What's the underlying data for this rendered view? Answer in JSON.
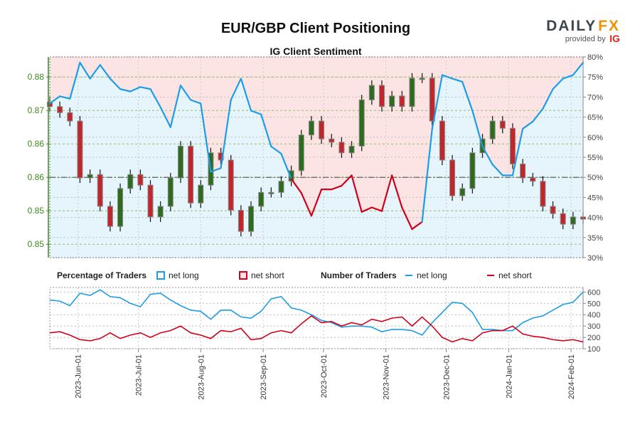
{
  "header": {
    "title": "EUR/GBP Client Positioning",
    "subtitle": "IG Client Sentiment",
    "logo": {
      "brand_dark": "DAILY",
      "brand_accent": "FX",
      "provided_by": "provided by",
      "partner": "IG"
    }
  },
  "legend": {
    "pct_title": "Percentage of Traders",
    "pct_long": "net long",
    "pct_short": "net short",
    "num_title": "Number of Traders",
    "num_long": "net long",
    "num_short": "net short"
  },
  "colors": {
    "long": "#1e9de6",
    "short": "#d0021b",
    "up_candle": "#2e6b1e",
    "down_candle": "#c0272d",
    "long_zone": "#e6f4fb",
    "short_zone": "#fce4e4",
    "price_axis": "#3a8a1a"
  },
  "chart_data": [
    {
      "type": "candlestick+line",
      "title": "IG Client Sentiment",
      "xlim": [
        "2023-05-18",
        "2024-02-07"
      ],
      "price_axis": {
        "side": "left",
        "ylim": [
          0.8436,
          0.8796
        ],
        "ticks": [
          0.876,
          0.87,
          0.864,
          0.858,
          0.852,
          0.846
        ],
        "tick_labels": [
          "0.88",
          "0.87",
          "0.86",
          "0.86",
          "0.85",
          "0.85"
        ]
      },
      "pct_axis": {
        "side": "right",
        "ylim": [
          30,
          80
        ],
        "ticks": [
          80,
          75,
          70,
          65,
          60,
          55,
          50,
          45,
          40,
          35,
          30
        ],
        "tick_labels": [
          "80%",
          "75%",
          "70%",
          "65%",
          "60%",
          "55%",
          "50%",
          "45%",
          "40%",
          "35%",
          "30%"
        ],
        "reference_line": 50
      },
      "grid": true,
      "dates": [
        "2023-05-18",
        "2023-05-23",
        "2023-05-28",
        "2023-06-02",
        "2023-06-07",
        "2023-06-12",
        "2023-06-17",
        "2023-06-22",
        "2023-06-27",
        "2023-07-02",
        "2023-07-07",
        "2023-07-12",
        "2023-07-17",
        "2023-07-22",
        "2023-07-27",
        "2023-08-01",
        "2023-08-06",
        "2023-08-11",
        "2023-08-16",
        "2023-08-21",
        "2023-08-26",
        "2023-08-31",
        "2023-09-05",
        "2023-09-10",
        "2023-09-15",
        "2023-09-20",
        "2023-09-25",
        "2023-09-30",
        "2023-10-05",
        "2023-10-10",
        "2023-10-15",
        "2023-10-20",
        "2023-10-25",
        "2023-10-30",
        "2023-11-04",
        "2023-11-09",
        "2023-11-14",
        "2023-11-19",
        "2023-11-24",
        "2023-11-29",
        "2023-12-04",
        "2023-12-09",
        "2023-12-14",
        "2023-12-19",
        "2023-12-24",
        "2023-12-29",
        "2024-01-03",
        "2024-01-08",
        "2024-01-13",
        "2024-01-18",
        "2024-01-23",
        "2024-01-28",
        "2024-02-02",
        "2024-02-07"
      ],
      "price_close": [
        0.8707,
        0.8696,
        0.8681,
        0.8579,
        0.8585,
        0.8528,
        0.8492,
        0.856,
        0.8585,
        0.8566,
        0.8509,
        0.8528,
        0.8579,
        0.8636,
        0.8534,
        0.8566,
        0.8624,
        0.8611,
        0.8521,
        0.8483,
        0.8528,
        0.8553,
        0.8553,
        0.8573,
        0.8592,
        0.8656,
        0.8681,
        0.8649,
        0.8643,
        0.8624,
        0.8636,
        0.8719,
        0.8745,
        0.8707,
        0.8726,
        0.8707,
        0.8758,
        0.8758,
        0.8681,
        0.8611,
        0.8547,
        0.856,
        0.8624,
        0.8649,
        0.8681,
        0.8668,
        0.8604,
        0.8579,
        0.8573,
        0.8528,
        0.8515,
        0.8496,
        0.8509,
        0.8505
      ],
      "net_long_pct": [
        68.4,
        70.2,
        69.6,
        78.6,
        74.6,
        78.0,
        74.6,
        72.0,
        71.4,
        72.5,
        72.0,
        67.5,
        62.5,
        72.9,
        69.3,
        68.4,
        51.4,
        52.3,
        69.3,
        74.6,
        66.6,
        65.7,
        57.7,
        55.9,
        49.6,
        46.1,
        40.4,
        47.0,
        47.0,
        47.9,
        50.5,
        41.4,
        42.5,
        41.6,
        50.5,
        42.5,
        37.1,
        38.9,
        62.1,
        75.5,
        74.6,
        73.8,
        66.6,
        57.7,
        53.2,
        50.5,
        50.5,
        62.1,
        63.9,
        67.1,
        72.0,
        74.6,
        75.5,
        78.6
      ]
    },
    {
      "type": "line",
      "xlim": [
        "2023-05-18",
        "2024-02-07"
      ],
      "ylim": [
        100,
        640
      ],
      "ticks": [
        600,
        500,
        400,
        300,
        200,
        100
      ],
      "tick_labels": [
        "600",
        "500",
        "400",
        "300",
        "200",
        "100"
      ],
      "x_tick_labels": [
        "2023-Jun-01",
        "2023-Jul-01",
        "2023-Aug-01",
        "2023-Sep-01",
        "2023-Oct-01",
        "2023-Nov-01",
        "2023-Dec-01",
        "2024-Jan-01",
        "2024-Feb-01"
      ],
      "x_tick_dates": [
        "2023-06-01",
        "2023-07-01",
        "2023-08-01",
        "2023-09-01",
        "2023-10-01",
        "2023-11-01",
        "2023-12-01",
        "2024-01-01",
        "2024-02-01"
      ],
      "grid": true,
      "series": [
        {
          "name": "net long",
          "values": [
            530,
            520,
            480,
            590,
            570,
            620,
            560,
            550,
            500,
            470,
            580,
            590,
            530,
            480,
            440,
            430,
            360,
            440,
            440,
            380,
            370,
            430,
            540,
            560,
            460,
            440,
            400,
            350,
            330,
            290,
            300,
            300,
            290,
            250,
            270,
            270,
            260,
            220,
            330,
            420,
            510,
            500,
            420,
            270,
            270,
            260,
            260,
            330,
            370,
            390,
            440,
            490,
            510,
            600
          ]
        },
        {
          "name": "net short",
          "values": [
            240,
            250,
            220,
            180,
            170,
            190,
            240,
            190,
            220,
            240,
            200,
            240,
            260,
            300,
            240,
            220,
            190,
            260,
            250,
            280,
            180,
            190,
            240,
            260,
            240,
            320,
            390,
            330,
            340,
            300,
            330,
            310,
            360,
            340,
            370,
            380,
            300,
            380,
            300,
            200,
            160,
            190,
            170,
            240,
            260,
            260,
            300,
            230,
            210,
            200,
            180,
            170,
            180,
            160
          ]
        }
      ]
    }
  ]
}
